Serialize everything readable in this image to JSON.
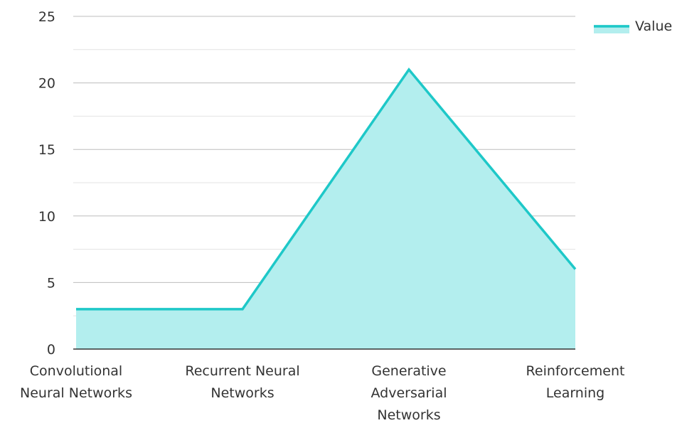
{
  "chart_data": {
    "type": "area",
    "title": "",
    "xlabel": "",
    "ylabel": "",
    "categories": [
      [
        "Convolutional",
        "Neural Networks"
      ],
      [
        "Recurrent Neural",
        "Networks"
      ],
      [
        "Generative",
        "Adversarial",
        "Networks"
      ],
      [
        "Reinforcement",
        "Learning"
      ]
    ],
    "series": [
      {
        "name": "Value",
        "values": [
          3,
          3,
          21,
          6
        ]
      }
    ],
    "ylim": [
      0,
      25
    ],
    "yticks": [
      0,
      5,
      10,
      15,
      20,
      25
    ],
    "grid": true,
    "legend_position": "top-right",
    "colors": {
      "line": "#1ec8c8",
      "fill": "#b3eeee",
      "grid_major": "#bdbdbd",
      "grid_minor": "#e3e3e3",
      "axis": "#333333"
    }
  }
}
